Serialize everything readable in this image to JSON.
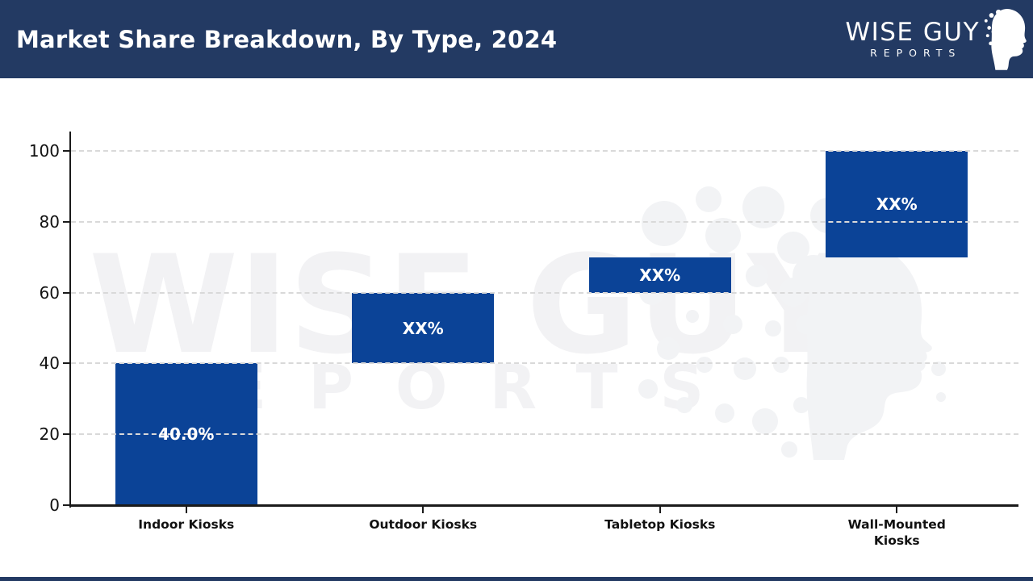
{
  "header": {
    "title": "Market Share Breakdown, By Type, 2024",
    "logo": {
      "line1": "WISE GUY",
      "line2": "REPORTS",
      "face_icon": "wise-guy-head-profile-icon"
    }
  },
  "watermark": {
    "line1": "WISE GUY",
    "line2": "REPORTS",
    "face_icon": "wise-guy-head-profile-watermark"
  },
  "chart_data": {
    "type": "bar",
    "variant": "waterfall",
    "title": "Market Share Breakdown, By Type, 2024",
    "categories": [
      "Indoor Kiosks",
      "Outdoor Kiosks",
      "Tabletop Kiosks",
      "Wall-Mounted Kiosks"
    ],
    "series": [
      {
        "name": "Market Share",
        "segments": [
          {
            "category": "Indoor Kiosks",
            "start": 0,
            "end": 40,
            "value": 40,
            "label": "40.0%"
          },
          {
            "category": "Outdoor Kiosks",
            "start": 40,
            "end": 60,
            "value": 20,
            "label": "XX%"
          },
          {
            "category": "Tabletop Kiosks",
            "start": 60,
            "end": 70,
            "value": 10,
            "label": "XX%"
          },
          {
            "category": "Wall-Mounted Kiosks",
            "start": 70,
            "end": 100,
            "value": 30,
            "label": "XX%"
          }
        ]
      }
    ],
    "xlabel": "",
    "ylabel": "",
    "yticks": [
      0,
      20,
      40,
      60,
      80,
      100
    ],
    "ylim": [
      0,
      105
    ],
    "grid": "dashed horizontal",
    "legend": false
  },
  "colors": {
    "header_bg": "#233a63",
    "bar": "#0b4397",
    "grid": "#d9d9d9",
    "axis_text": "#111111",
    "watermark": "#f2f2f4",
    "bar_label_text": "#ffffff"
  }
}
